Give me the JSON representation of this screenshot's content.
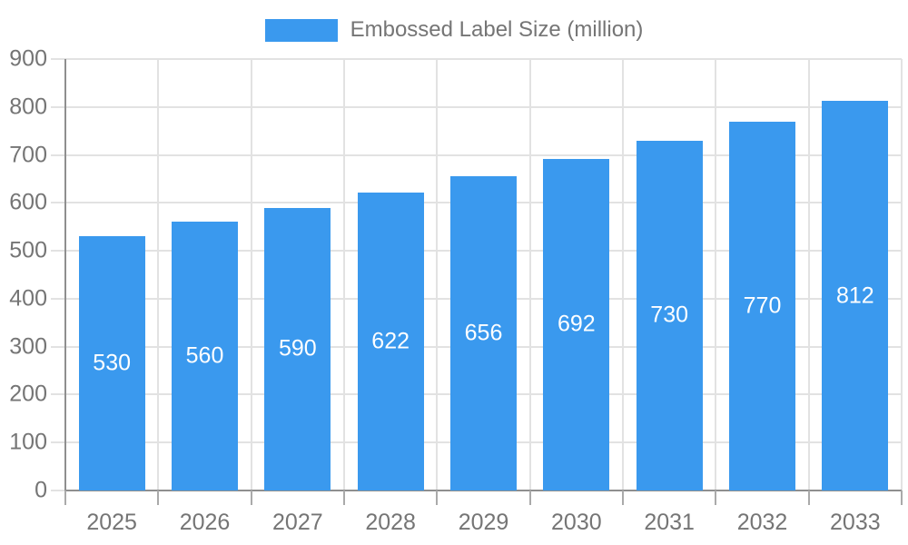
{
  "chart_data": {
    "type": "bar",
    "title": "Embossed Label Size (million)",
    "categories": [
      "2025",
      "2026",
      "2027",
      "2028",
      "2029",
      "2030",
      "2031",
      "2032",
      "2033"
    ],
    "values": [
      530,
      560,
      590,
      622,
      656,
      692,
      730,
      770,
      812
    ],
    "xlabel": "",
    "ylabel": "",
    "ylim": [
      0,
      900
    ],
    "ytick_step": 100,
    "grid": "on",
    "legend_position": "top-center",
    "value_labels": "inside-middle",
    "colors": {
      "bar": "#3a99ee",
      "value_label": "#ffffff",
      "axis_text": "#757575",
      "gridline": "#e2e2e2",
      "axis_line": "#8f8f8f"
    }
  }
}
